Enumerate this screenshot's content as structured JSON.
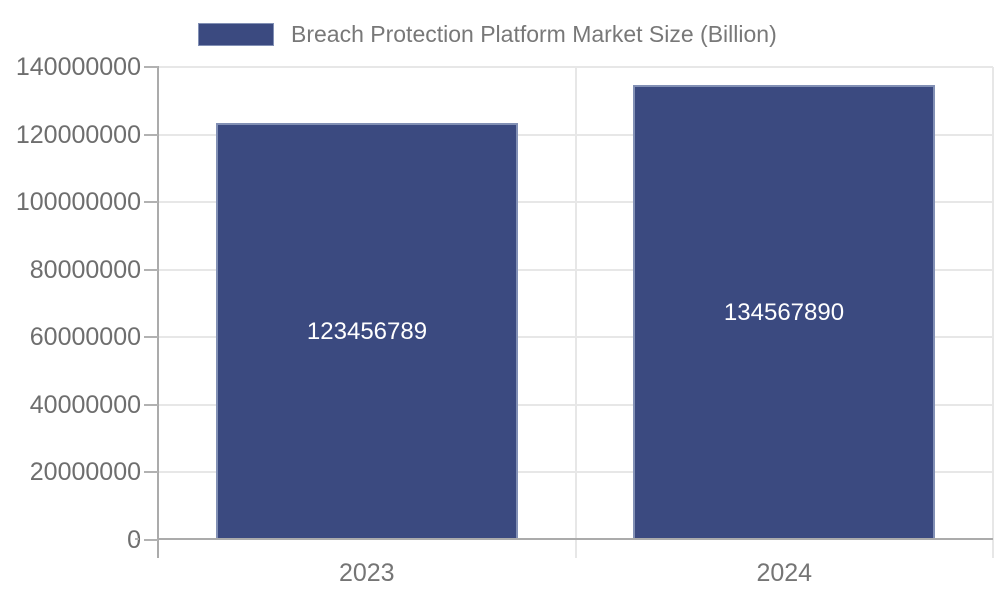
{
  "chart_data": {
    "type": "bar",
    "title": "Breach Protection Platform Market Size (Billion)",
    "categories": [
      "2023",
      "2024"
    ],
    "series": [
      {
        "name": "Breach Protection Platform Market Size (Billion)",
        "values": [
          123456789,
          134567890
        ]
      }
    ],
    "value_labels": [
      "123456789",
      "134567890"
    ],
    "xlabel": "",
    "ylabel": "",
    "ylim": [
      0,
      140000000
    ],
    "yticks": [
      0,
      20000000,
      40000000,
      60000000,
      80000000,
      100000000,
      120000000,
      140000000
    ],
    "ytick_labels": [
      "0",
      "20000000",
      "40000000",
      "60000000",
      "80000000",
      "100000000",
      "120000000",
      "140000000"
    ],
    "grid": true,
    "legend": {
      "position": "top",
      "label": "Breach Protection Platform Market Size (Billion)"
    },
    "colors": {
      "bar_fill": "#3b4a80",
      "bar_edge": "#8290b5",
      "grid_line": "#e7e7e7",
      "axis_line": "#ababab",
      "tick_text": "#6e6e6e",
      "category_text": "#757575",
      "legend_text": "#787878",
      "value_text": "#ffffff",
      "background": "#ffffff"
    }
  }
}
